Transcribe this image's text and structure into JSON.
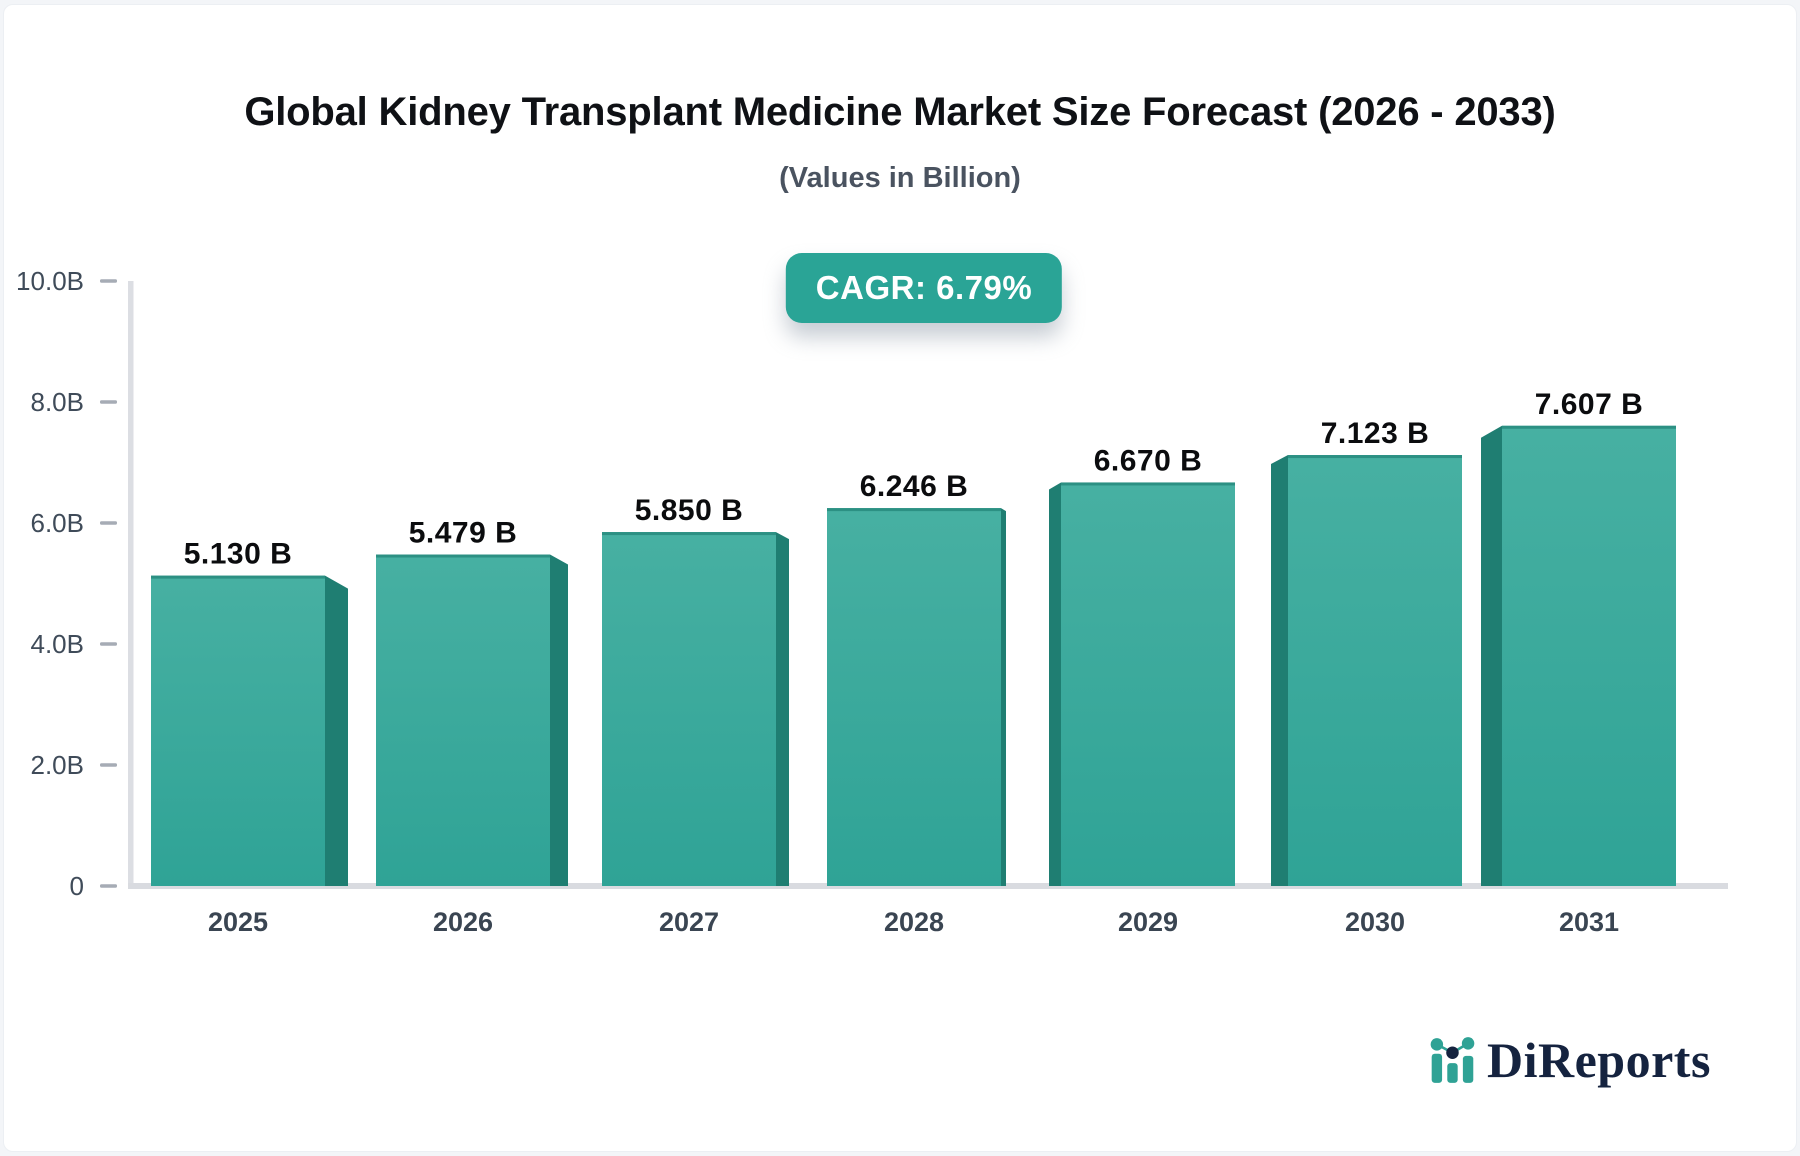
{
  "header": {
    "title": "Global Kidney Transplant Medicine Market Size Forecast (2026 - 2033)",
    "subtitle": "(Values in Billion)"
  },
  "badge": {
    "label": "CAGR: 6.79%"
  },
  "chart_data": {
    "type": "bar",
    "title": "Global Kidney Transplant Medicine Market Size Forecast (2026 - 2033)",
    "subtitle": "(Values in Billion)",
    "categories": [
      "2025",
      "2026",
      "2027",
      "2028",
      "2029",
      "2030",
      "2031"
    ],
    "values": [
      5.13,
      5.479,
      5.85,
      6.246,
      6.67,
      7.123,
      7.607
    ],
    "value_labels": [
      "5.130 B",
      "5.479 B",
      "5.850 B",
      "6.246 B",
      "6.670 B",
      "7.123 B",
      "7.607 B"
    ],
    "y_ticks": [
      {
        "value": 10,
        "label": "10.0B"
      },
      {
        "value": 8,
        "label": "8.0B"
      },
      {
        "value": 6,
        "label": "6.0B"
      },
      {
        "value": 4,
        "label": "4.0B"
      },
      {
        "value": 2,
        "label": "2.0B"
      },
      {
        "value": 0,
        "label": "0"
      }
    ],
    "ylim": [
      0,
      10
    ],
    "xlabel": "",
    "ylabel": "",
    "grid": false,
    "legend": null,
    "annotations": [
      "CAGR: 6.79%"
    ],
    "style": "3d-perspective-bars",
    "bar_color_top": "#47b0a2",
    "bar_color_bottom": "#2fa396",
    "bar_rim_color": "#2c9083",
    "bar_side_color": "#1f7e72"
  },
  "footer": {
    "logo_text": "DiReports",
    "logo_icon": "mini-bar-line-chart-icon"
  },
  "colors": {
    "accent_teal": "#2aa496",
    "logo_navy": "#15233f",
    "axis_gray": "#d9dbe0",
    "tick_text": "#3f4b59",
    "value_text": "#0b0c0e"
  }
}
